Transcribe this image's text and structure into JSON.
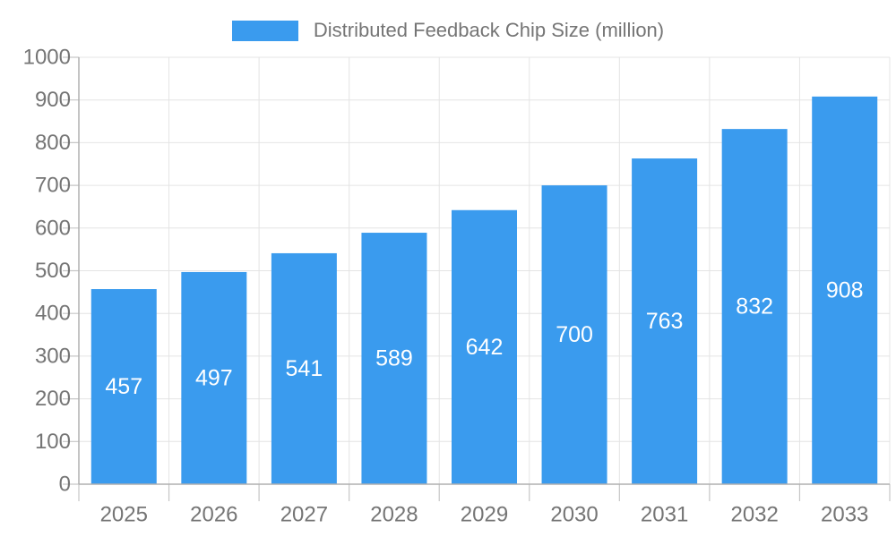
{
  "chart_data": {
    "type": "bar",
    "title": "",
    "series_name": "Distributed Feedback Chip Size (million)",
    "categories": [
      "2025",
      "2026",
      "2027",
      "2028",
      "2029",
      "2030",
      "2031",
      "2032",
      "2033"
    ],
    "values": [
      457,
      497,
      541,
      589,
      642,
      700,
      763,
      832,
      908
    ],
    "value_label_position": "inside-center",
    "xlabel": "",
    "ylabel": "",
    "ylim": [
      0,
      1000
    ],
    "yticks": [
      0,
      100,
      200,
      300,
      400,
      500,
      600,
      700,
      800,
      900,
      1000
    ],
    "grid": true,
    "legend_position": "top-center",
    "colors": {
      "bar": "#3A9BEE",
      "value_label": "#FFFFFF",
      "axis_text": "#757575",
      "grid_line": "#E4E4E4",
      "axis_line": "#B0B0B0",
      "tick": "#C6C6C6",
      "background": "#FFFFFF"
    }
  }
}
